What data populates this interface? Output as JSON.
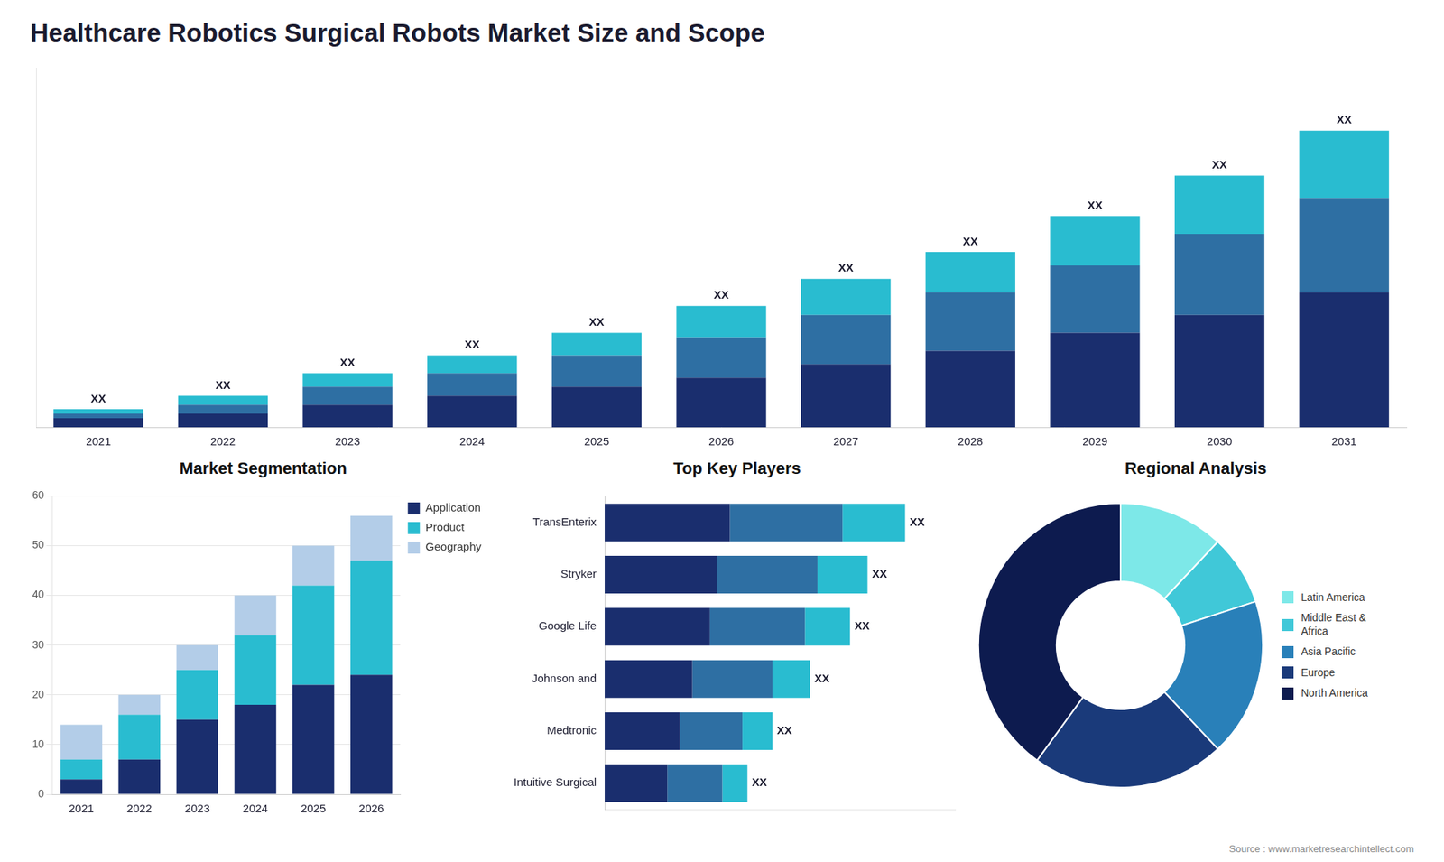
{
  "title": "Healthcare Robotics Surgical Robots Market Size and Scope",
  "annotations": [
    "Source : www.marketresearchintellect.com"
  ],
  "chart_data": [
    {
      "type": "bar",
      "stacked": true,
      "categories": [
        "2021",
        "2022",
        "2023",
        "2024",
        "2025",
        "2026",
        "2027",
        "2028",
        "2029",
        "2030",
        "2031"
      ],
      "series": [
        {
          "color": "#1a2e6e",
          "values": [
            2,
            3,
            5,
            7,
            9,
            11,
            14,
            17,
            21,
            25,
            30
          ]
        },
        {
          "color": "#2e6fa3",
          "values": [
            1,
            2,
            4,
            5,
            7,
            9,
            11,
            13,
            15,
            18,
            21
          ]
        },
        {
          "color": "#29bcd0",
          "values": [
            1,
            2,
            3,
            4,
            5,
            7,
            8,
            9,
            11,
            13,
            15
          ]
        }
      ],
      "annotations": [
        "XX",
        "XX",
        "XX",
        "XX",
        "XX",
        "XX",
        "XX",
        "XX",
        "XX",
        "XX",
        "XX"
      ],
      "ylim": [
        0,
        80
      ],
      "tick_labels": "x",
      "grid": false
    },
    {
      "type": "bar",
      "title": "Market Segmentation",
      "stacked": true,
      "categories": [
        "2021",
        "2022",
        "2023",
        "2024",
        "2025",
        "2026"
      ],
      "series": [
        {
          "name": "Application",
          "color": "#1a2e6e",
          "values": [
            3,
            7,
            15,
            18,
            22,
            24
          ]
        },
        {
          "name": "Product",
          "color": "#29bcd0",
          "values": [
            4,
            9,
            10,
            14,
            20,
            23
          ]
        },
        {
          "name": "Geography",
          "color": "#b3cde8",
          "values": [
            7,
            4,
            5,
            8,
            8,
            9
          ]
        }
      ],
      "ylim": [
        0,
        60
      ],
      "yticks": [
        0,
        10,
        20,
        30,
        40,
        50,
        60
      ],
      "grid": true,
      "legend": "right"
    },
    {
      "type": "bar",
      "title": "Top Key Players",
      "orientation": "horizontal",
      "stacked": true,
      "categories": [
        "TransEnterix",
        "Stryker",
        "Google Life",
        "Johnson and",
        "Medtronic",
        "Intuitive Surgical"
      ],
      "series": [
        {
          "color": "#1a2e6e",
          "values": [
            5.0,
            4.5,
            4.2,
            3.5,
            3.0,
            2.5
          ]
        },
        {
          "color": "#2e6fa3",
          "values": [
            4.5,
            4.0,
            3.8,
            3.2,
            2.5,
            2.2
          ]
        },
        {
          "color": "#29bcd0",
          "values": [
            2.5,
            2.0,
            1.8,
            1.5,
            1.2,
            1.0
          ]
        }
      ],
      "annotations": [
        "XX",
        "XX",
        "XX",
        "XX",
        "XX",
        "XX"
      ],
      "xlim": [
        0,
        14
      ],
      "tick_labels": "y",
      "grid": false
    },
    {
      "type": "doughnut",
      "title": "Regional Analysis",
      "categories": [
        "Latin America",
        "Middle East &\nAfrica",
        "Asia Pacific",
        "Europe",
        "North America"
      ],
      "values": [
        12,
        8,
        18,
        22,
        40
      ],
      "colors": [
        "#7de8e8",
        "#40c8d8",
        "#2980b9",
        "#1a3a7a",
        "#0d1b4f"
      ],
      "legend": "right"
    }
  ]
}
